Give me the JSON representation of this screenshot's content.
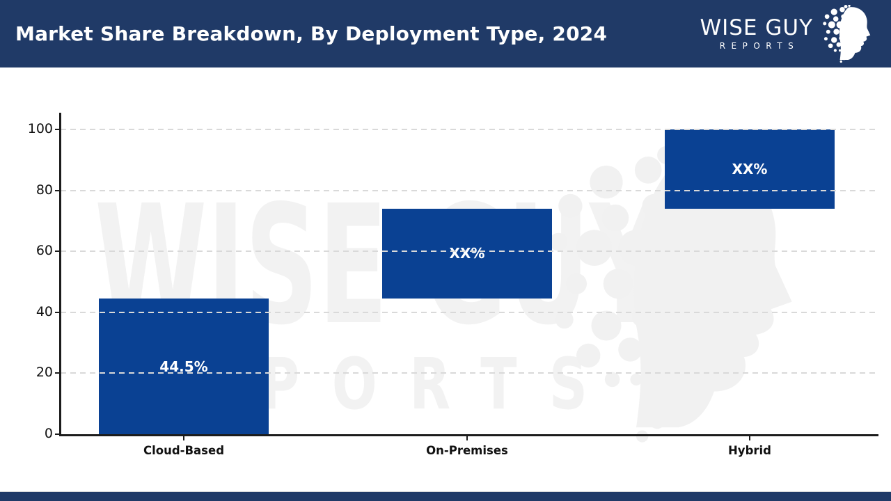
{
  "header": {
    "title": "Market Share Breakdown, By Deployment Type, 2024",
    "logo": {
      "wordmark": "WISE GUY",
      "subtext": "REPORTS"
    }
  },
  "watermark": {
    "line1": "WISE GUY",
    "line2": "REPORTS"
  },
  "chart_data": {
    "type": "bar",
    "variant": "waterfall",
    "title": "Market Share Breakdown, By Deployment Type, 2024",
    "categories": [
      "Cloud-Based",
      "On-Premises",
      "Hybrid"
    ],
    "series": [
      {
        "name": "Market share (%)",
        "segments": [
          {
            "category": "Cloud-Based",
            "start": 0,
            "end": 44.5,
            "label": "44.5%"
          },
          {
            "category": "On-Premises",
            "start": 44.5,
            "end": 74,
            "label": "XX%"
          },
          {
            "category": "Hybrid",
            "start": 74,
            "end": 100,
            "label": "XX%"
          }
        ]
      }
    ],
    "xlabel": "",
    "ylabel": "",
    "ylim": [
      0,
      106
    ],
    "yticks": [
      0,
      20,
      40,
      60,
      80,
      100
    ],
    "grid": "horizontal-dashed",
    "legend": "none",
    "bar_color": "#0a4193",
    "value_label_color": "#ffffff"
  },
  "colors": {
    "header_bg": "#203a67",
    "footer_bg": "#203a67",
    "grid": "#d9d9d9",
    "axis": "#1c1c1c",
    "watermark": "#f2f2f2"
  }
}
